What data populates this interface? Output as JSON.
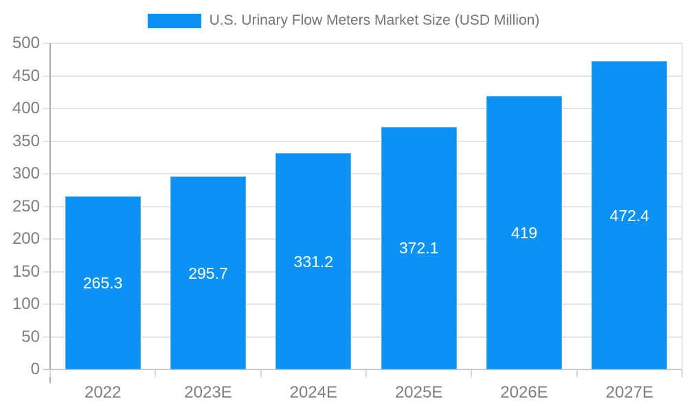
{
  "chart_data": {
    "type": "bar",
    "title": "U.S. Urinary Flow Meters Market Size (USD Million)",
    "categories": [
      "2022",
      "2023E",
      "2024E",
      "2025E",
      "2026E",
      "2027E"
    ],
    "values": [
      265.3,
      295.7,
      331.2,
      372.1,
      419,
      472.4
    ],
    "value_labels": [
      "265.3",
      "295.7",
      "331.2",
      "372.1",
      "419",
      "472.4"
    ],
    "xlabel": "",
    "ylabel": "",
    "ylim": [
      0,
      500
    ],
    "y_ticks": [
      0,
      50,
      100,
      150,
      200,
      250,
      300,
      350,
      400,
      450,
      500
    ],
    "grid": true,
    "legend_position": "top-center",
    "colors": {
      "bar": "#0a93f5",
      "bar_edge": "#55aef2",
      "value_label": "#ffffff",
      "axis_label": "#7f7f7f",
      "title": "#757575",
      "grid_line": "#e4e4e4",
      "x_axis_line": "#c9c9c9",
      "y_axis_line": "#ababab",
      "tick_mark": "#d6d6d6",
      "background": "#ffffff"
    }
  }
}
